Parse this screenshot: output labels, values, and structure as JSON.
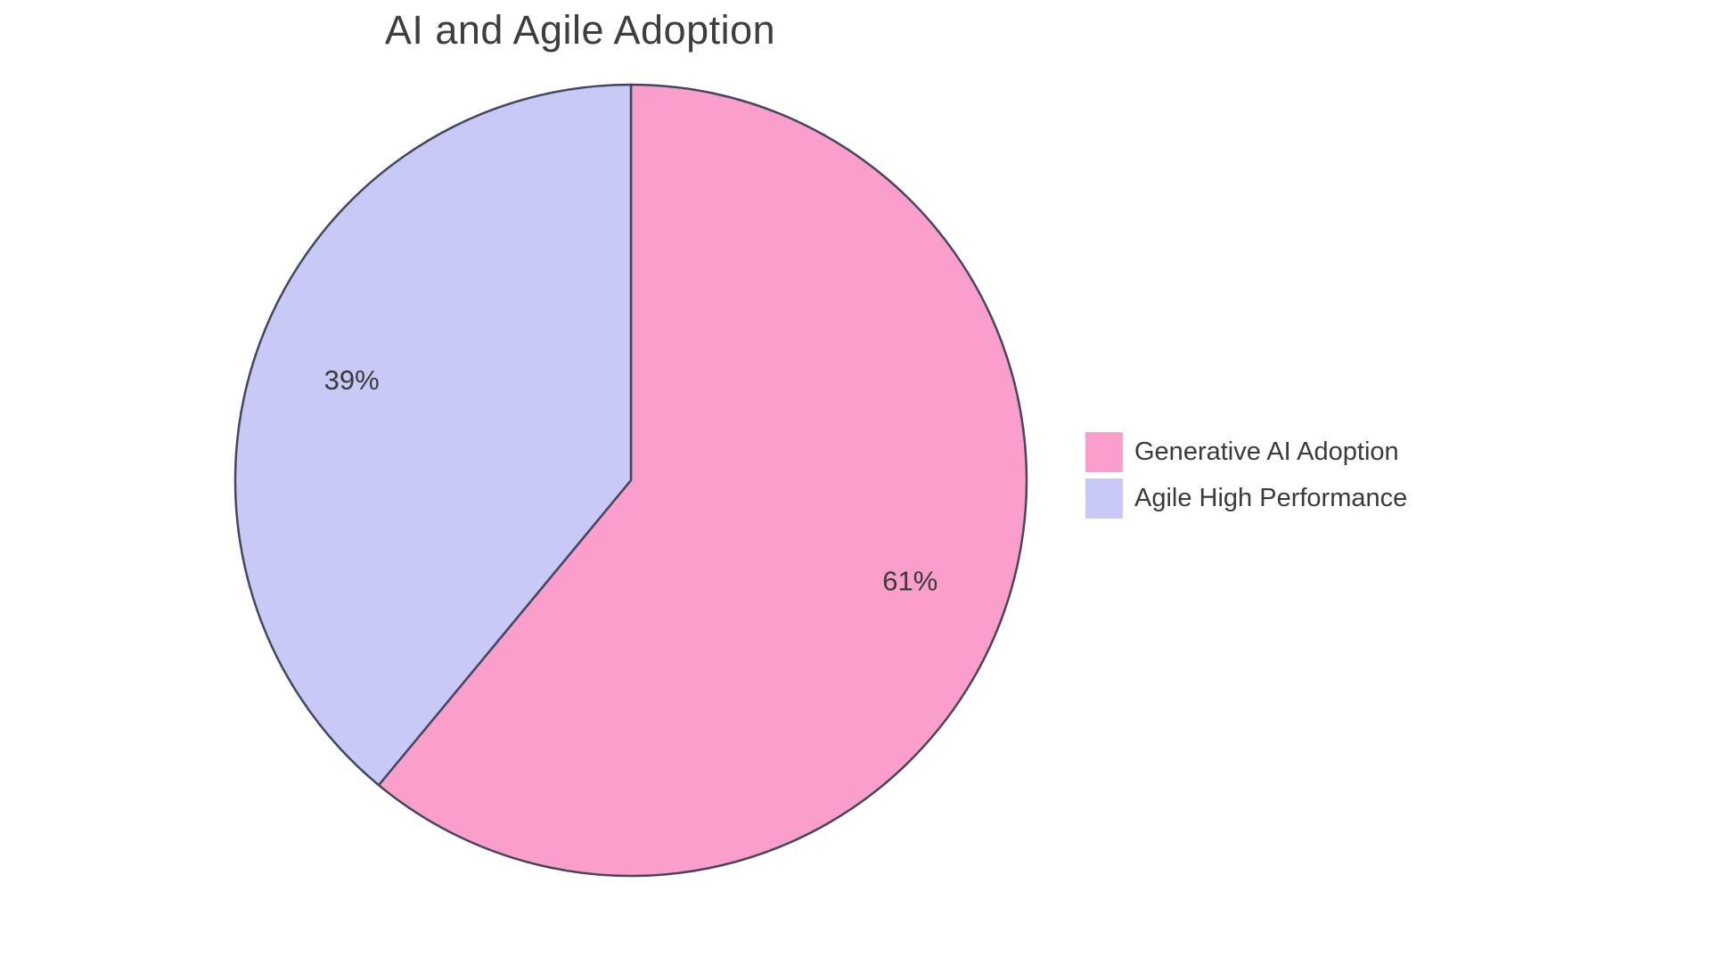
{
  "chart_data": {
    "type": "pie",
    "title": "AI and Agile Adoption",
    "labels": [
      "Generative AI Adoption",
      "Agile High Performance"
    ],
    "values": [
      61,
      39
    ],
    "value_labels": [
      "61%",
      "39%"
    ],
    "colors": [
      "#FA9FCB",
      "#C9C9F7"
    ],
    "stroke_color": "#45455F",
    "stroke_width": 2.5,
    "start_angle_deg": 0,
    "direction": "clockwise",
    "legend_position": "right",
    "label_radius_fraction": 0.75,
    "label_color": "#3A3A3A",
    "background": "#FFFFFF"
  }
}
